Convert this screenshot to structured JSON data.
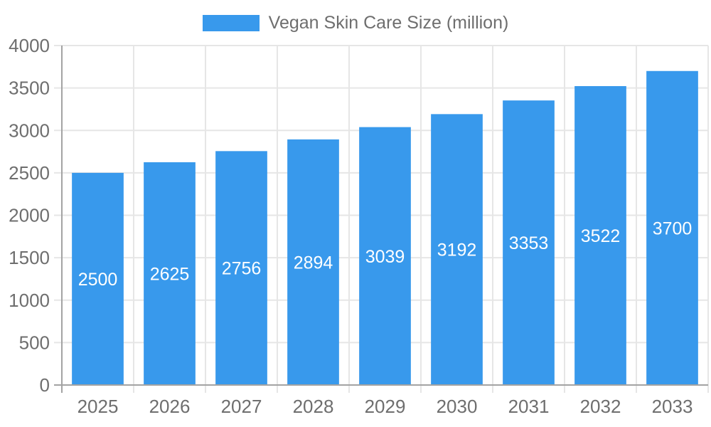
{
  "legend": {
    "label": "Vegan Skin Care Size (million)"
  },
  "colors": {
    "bar": "#3899ec",
    "bar_label": "#ffffff",
    "axis_label": "#6e6e6e",
    "grid": "#e6e6e6",
    "axis_line": "#a3a3a3",
    "background": "#ffffff"
  },
  "chart_data": {
    "type": "bar",
    "title": "Vegan Skin Care Size (million)",
    "categories": [
      "2025",
      "2026",
      "2027",
      "2028",
      "2029",
      "2030",
      "2031",
      "2032",
      "2033"
    ],
    "values": [
      2500,
      2625,
      2756,
      2894,
      3039,
      3192,
      3353,
      3522,
      3700
    ],
    "xlabel": "",
    "ylabel": "",
    "ylim": [
      0,
      4000
    ],
    "ytick_step": 500,
    "grid": true,
    "legend_position": "top",
    "bar_labels": "inside-centered"
  }
}
